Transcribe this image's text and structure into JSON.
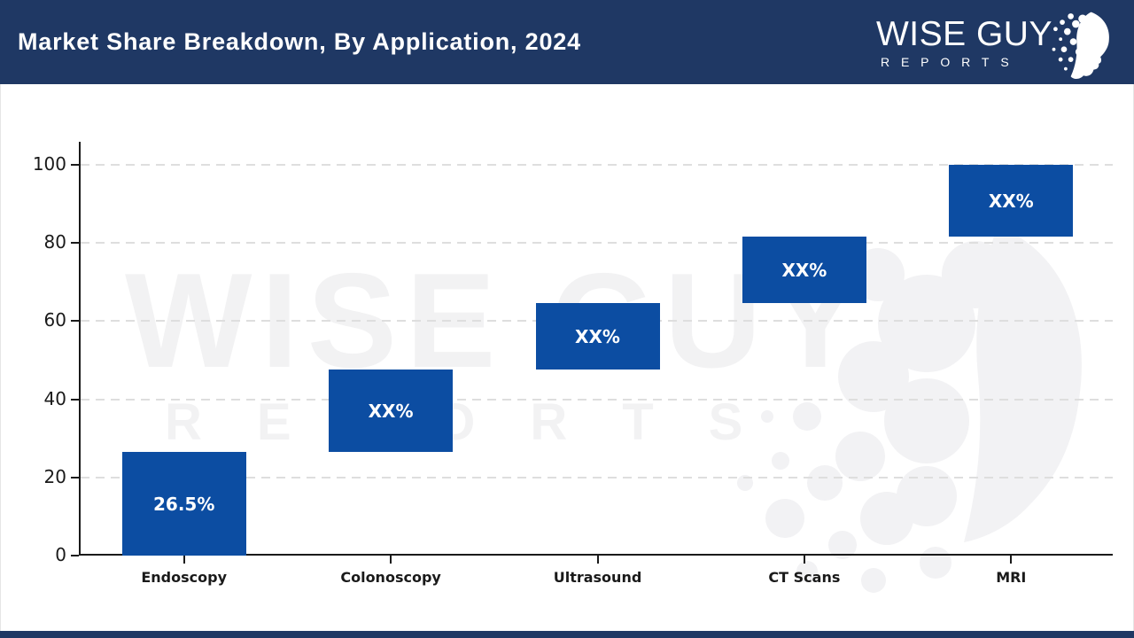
{
  "header": {
    "title": "Market Share Breakdown, By Application, 2024",
    "logo": {
      "line1": "WISE GUY",
      "line2": "REPORTS"
    },
    "bg_color": "#1f3864"
  },
  "watermark": {
    "line1": "WISE GUY",
    "line2": "REPORTS"
  },
  "chart_data": {
    "type": "bar",
    "subtype": "waterfall",
    "title": "Market Share Breakdown, By Application, 2024",
    "categories": [
      "Endoscopy",
      "Colonoscopy",
      "Ultrasound",
      "CT Scans",
      "MRI"
    ],
    "segments": [
      {
        "category": "Endoscopy",
        "start": 0,
        "end": 26.5,
        "label": "26.5%"
      },
      {
        "category": "Colonoscopy",
        "start": 26.5,
        "end": 47.6,
        "label": "XX%"
      },
      {
        "category": "Ultrasound",
        "start": 47.6,
        "end": 64.6,
        "label": "XX%"
      },
      {
        "category": "CT Scans",
        "start": 64.6,
        "end": 81.6,
        "label": "XX%"
      },
      {
        "category": "MRI",
        "start": 81.6,
        "end": 100,
        "label": "XX%"
      }
    ],
    "yticks": [
      0,
      20,
      40,
      60,
      80,
      100
    ],
    "ylim": [
      0,
      105
    ],
    "grid": "horizontal-dashed",
    "legend": "none",
    "bar_color": "#0c4da2",
    "bar_label_color": "#ffffff",
    "axis_color": "#1a1a1a"
  }
}
